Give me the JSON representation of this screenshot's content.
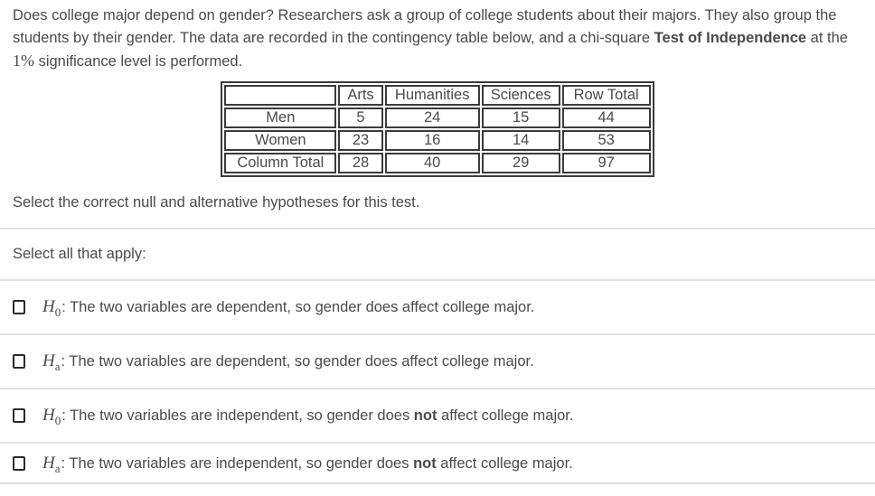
{
  "question": {
    "paragraph": {
      "part1": "Does college major depend on gender? Researchers ask a group of college students about their majors. They also group the students by their gender. The data are recorded in the contingency table below, and a chi-square ",
      "bold": "Test of Independence",
      "part2": " at the ",
      "percent": "1%",
      "part3": " significance level is performed."
    },
    "prompt": "Select the correct null and alternative hypotheses for this test.",
    "select_all_label": "Select all that apply:"
  },
  "table": {
    "headers": [
      "",
      "Arts",
      "Humanities",
      "Sciences",
      "Row Total"
    ],
    "rows": [
      {
        "label": "Men",
        "values": [
          "5",
          "24",
          "15",
          "44"
        ]
      },
      {
        "label": "Women",
        "values": [
          "23",
          "16",
          "14",
          "53"
        ]
      },
      {
        "label": "Column Total",
        "values": [
          "28",
          "40",
          "29",
          "97"
        ]
      }
    ]
  },
  "options": [
    {
      "symbol": "H",
      "subscript": "0",
      "text": ": The two variables are dependent, so gender does affect college major.",
      "bold_word": "",
      "text_after": ""
    },
    {
      "symbol": "H",
      "subscript": "a",
      "text": ": The two variables are dependent, so gender does affect college major.",
      "bold_word": "",
      "text_after": ""
    },
    {
      "symbol": "H",
      "subscript": "0",
      "text": ": The two variables are independent, so gender does ",
      "bold_word": "not",
      "text_after": " affect college major."
    },
    {
      "symbol": "H",
      "subscript": "a",
      "text": ": The two variables are independent, so gender does ",
      "bold_word": "not",
      "text_after": " affect college major."
    }
  ],
  "colors": {
    "text": "#4a4a4a",
    "table_border": "#3b3b3b",
    "divider": "#e0e0e0",
    "checkbox_border": "#2b2b2b"
  }
}
